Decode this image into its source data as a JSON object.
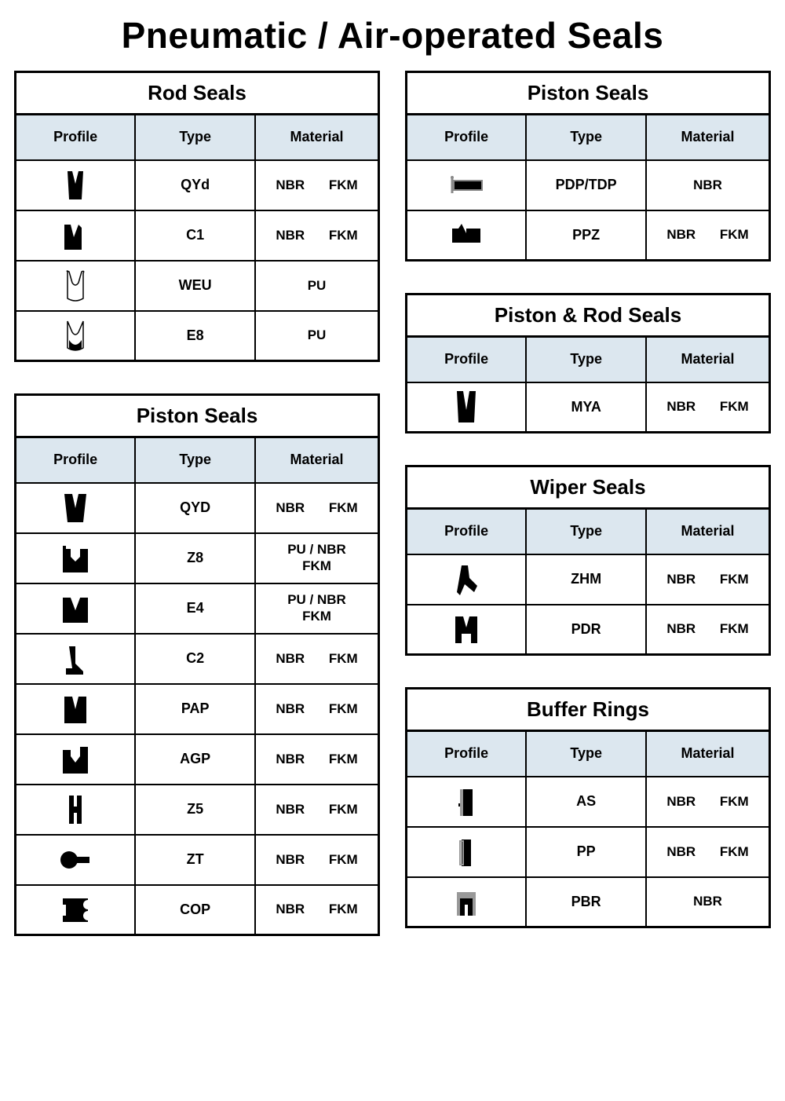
{
  "page_title": "Pneumatic / Air-operated Seals",
  "colors": {
    "header_bg": "#dce7ef",
    "border": "#000000",
    "text": "#000000",
    "fill": "#000000",
    "outline_gray": "#999999"
  },
  "columns": [
    "Profile",
    "Type",
    "Material"
  ],
  "tables": {
    "rod_seals": {
      "title": "Rod Seals",
      "rows": [
        {
          "type": "QYd",
          "material": [
            "NBR",
            "FKM"
          ],
          "profile": "v-notch"
        },
        {
          "type": "C1",
          "material": [
            "NBR",
            "FKM"
          ],
          "profile": "l-notch"
        },
        {
          "type": "WEU",
          "material": [
            "PU"
          ],
          "profile": "outline-u"
        },
        {
          "type": "E8",
          "material": [
            "PU"
          ],
          "profile": "outline-u-bottom"
        }
      ]
    },
    "piston_seals_left": {
      "title": "Piston Seals",
      "rows": [
        {
          "type": "QYD",
          "material": [
            "NBR",
            "FKM"
          ],
          "profile": "v-wide"
        },
        {
          "type": "Z8",
          "material": [
            "PU / NBR",
            "FKM"
          ],
          "profile": "u-notch-step",
          "material_stacked": true
        },
        {
          "type": "E4",
          "material": [
            "PU / NBR",
            "FKM"
          ],
          "profile": "u-block",
          "material_stacked": true
        },
        {
          "type": "C2",
          "material": [
            "NBR",
            "FKM"
          ],
          "profile": "j-hook"
        },
        {
          "type": "PAP",
          "material": [
            "NBR",
            "FKM"
          ],
          "profile": "u-plain"
        },
        {
          "type": "AGP",
          "material": [
            "NBR",
            "FKM"
          ],
          "profile": "u-stepped"
        },
        {
          "type": "Z5",
          "material": [
            "NBR",
            "FKM"
          ],
          "profile": "h-narrow"
        },
        {
          "type": "ZT",
          "material": [
            "NBR",
            "FKM"
          ],
          "profile": "o-stem"
        },
        {
          "type": "COP",
          "material": [
            "NBR",
            "FKM"
          ],
          "profile": "c-scallop"
        }
      ]
    },
    "piston_seals_right": {
      "title": "Piston Seals",
      "rows": [
        {
          "type": "PDP/TDP",
          "material": [
            "NBR"
          ],
          "profile": "bar-ring"
        },
        {
          "type": "PPZ",
          "material": [
            "NBR",
            "FKM"
          ],
          "profile": "zig-block"
        }
      ]
    },
    "piston_rod_seals": {
      "title": "Piston & Rod Seals",
      "rows": [
        {
          "type": "MYA",
          "material": [
            "NBR",
            "FKM"
          ],
          "profile": "v-deep"
        }
      ]
    },
    "wiper_seals": {
      "title": "Wiper Seals",
      "rows": [
        {
          "type": "ZHM",
          "material": [
            "NBR",
            "FKM"
          ],
          "profile": "wiper-y"
        },
        {
          "type": "PDR",
          "material": [
            "NBR",
            "FKM"
          ],
          "profile": "wiper-u"
        }
      ]
    },
    "buffer_rings": {
      "title": "Buffer Rings",
      "rows": [
        {
          "type": "AS",
          "material": [
            "NBR",
            "FKM"
          ],
          "profile": "buf-as"
        },
        {
          "type": "PP",
          "material": [
            "NBR",
            "FKM"
          ],
          "profile": "buf-pp"
        },
        {
          "type": "PBR",
          "material": [
            "NBR"
          ],
          "profile": "buf-pbr"
        }
      ]
    }
  }
}
